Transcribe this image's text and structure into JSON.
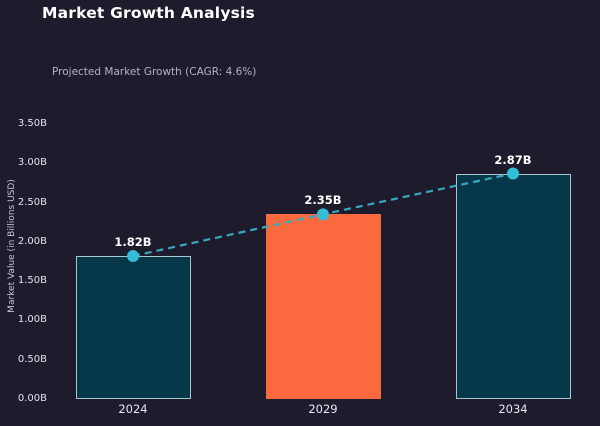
{
  "chart_data": {
    "type": "bar",
    "title": "Market Growth Analysis",
    "subtitle": "Projected Market Growth (CAGR: 4.6%)",
    "ylabel": "Market Value (in Billions USD)",
    "xlabel": "",
    "categories": [
      "2024",
      "2029",
      "2034"
    ],
    "values": [
      1.82,
      2.35,
      2.87
    ],
    "value_labels": [
      "1.82B",
      "2.35B",
      "2.87B"
    ],
    "bar_colors": [
      "#073849",
      "#fb6a3f",
      "#073849"
    ],
    "bar_border_colors": [
      "#a6c6d0",
      "",
      "#a6c6d0"
    ],
    "ylim": [
      0,
      3.5
    ],
    "ytick_values": [
      0,
      0.5,
      1.0,
      1.5,
      2.0,
      2.5,
      3.0,
      3.5
    ],
    "ytick_labels": [
      "0.00B",
      "0.50B",
      "1.00B",
      "1.50B",
      "2.00B",
      "2.50B",
      "3.00B",
      "3.50B"
    ],
    "grid": false,
    "legend": "none",
    "trend_line": {
      "style": "dashed",
      "color": "#38a8c0",
      "marker": "circle",
      "marker_color": "#33bdd8"
    }
  },
  "colors": {
    "background": "#1d1b2c",
    "title_text": "#ffffff",
    "subtitle_text": "#b5b2bf",
    "tick_text": "#e4e2ec",
    "axis_title_text": "#c9c6d3",
    "value_label_text": "#ffffff"
  }
}
